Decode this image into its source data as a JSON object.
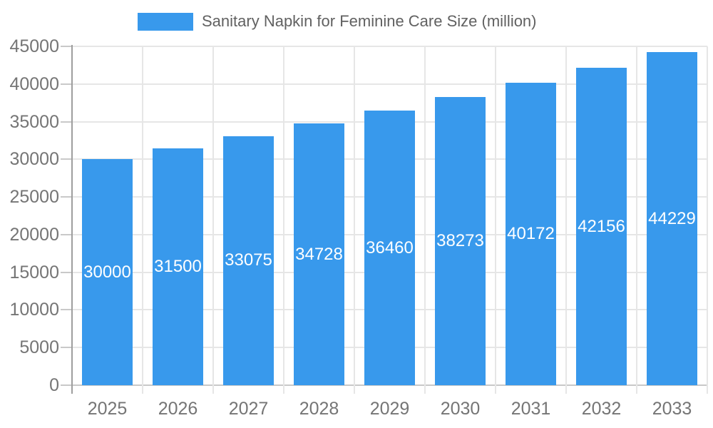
{
  "legend": {
    "label": "Sanitary Napkin for Feminine Care Size (million)"
  },
  "chart_data": {
    "type": "bar",
    "title": "Sanitary Napkin for Feminine Care Size (million)",
    "categories": [
      "2025",
      "2026",
      "2027",
      "2028",
      "2029",
      "2030",
      "2031",
      "2032",
      "2033"
    ],
    "values": [
      30000,
      31500,
      33075,
      34728,
      36460,
      38273,
      40172,
      42156,
      44229
    ],
    "xlabel": "",
    "ylabel": "",
    "ylim": [
      0,
      45000
    ],
    "yticks": [
      0,
      5000,
      10000,
      15000,
      20000,
      25000,
      30000,
      35000,
      40000,
      45000
    ],
    "grid": true,
    "legend_position": "top",
    "colors": {
      "bar": "#3899EC",
      "value_label": "#ffffff",
      "axis_text": "#757575",
      "title_text": "#616161",
      "gridline": "#e6e6e6",
      "baseline": "#c9c9c9",
      "tick": "#c9c9c9",
      "axis_line": "#9e9e9e",
      "background": "#ffffff"
    }
  }
}
